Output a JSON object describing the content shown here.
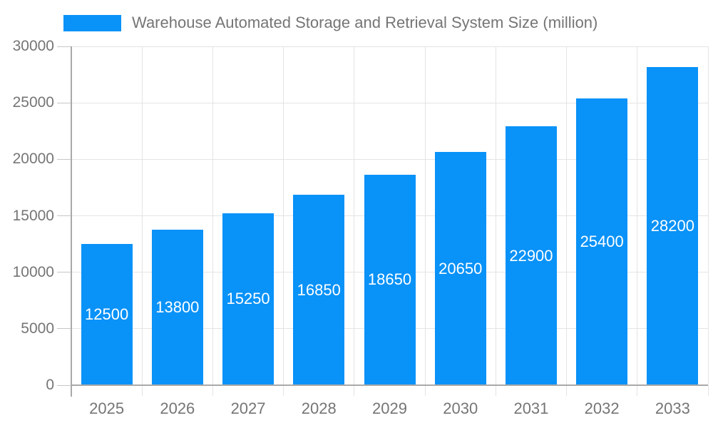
{
  "chart_data": {
    "type": "bar",
    "title": "Warehouse Automated Storage and Retrieval System Size (million)",
    "categories": [
      "2025",
      "2026",
      "2027",
      "2028",
      "2029",
      "2030",
      "2031",
      "2032",
      "2033"
    ],
    "values": [
      12500,
      13800,
      15250,
      16850,
      18650,
      20650,
      22900,
      25400,
      28200
    ],
    "xlabel": "",
    "ylabel": "",
    "ylim": [
      0,
      30000
    ],
    "yticks": [
      0,
      5000,
      10000,
      15000,
      20000,
      25000,
      30000
    ],
    "grid": true,
    "legend_position": "top-left",
    "value_label_position": "inside-center"
  },
  "colors": {
    "bar": "#0992f8",
    "axis_line": "#a9a9a9",
    "tick": "#c6c6c6",
    "gridline": "#e4e4e4",
    "text": "#757575",
    "value_label": "#ffffff",
    "background": "#ffffff"
  }
}
